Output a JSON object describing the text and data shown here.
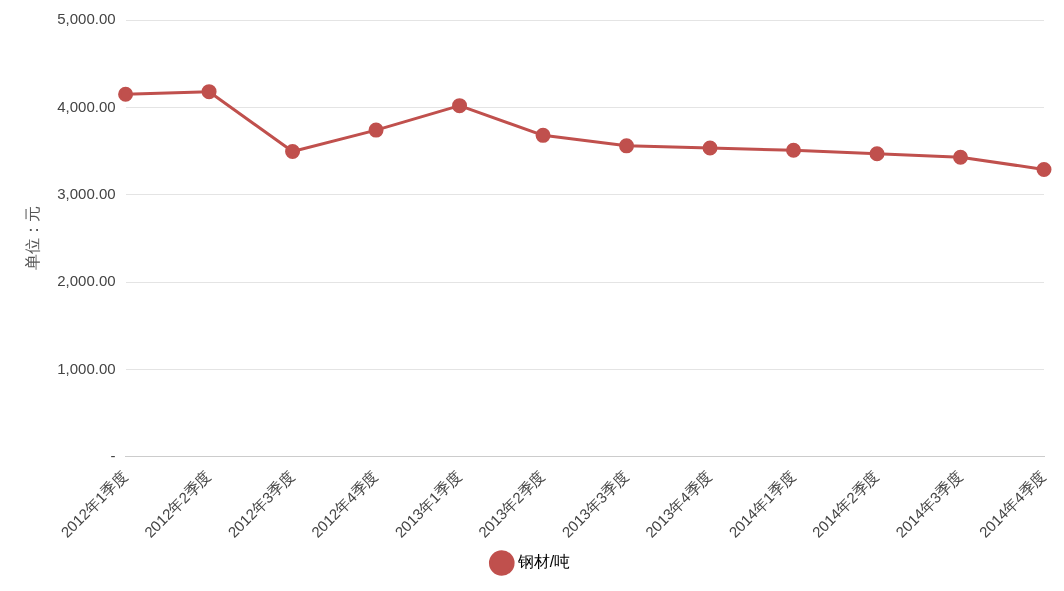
{
  "chart_data": {
    "type": "line",
    "ylabel": "单位：元",
    "categories": [
      "2012年1季度",
      "2012年2季度",
      "2012年3季度",
      "2012年4季度",
      "2013年1季度",
      "2013年2季度",
      "2013年3季度",
      "2013年4季度",
      "2014年1季度",
      "2014年2季度",
      "2014年3季度",
      "2014年4季度"
    ],
    "series": [
      {
        "name": "钢材/吨",
        "color": "#c0504d",
        "values": [
          4150,
          4180,
          3495,
          3740,
          4020,
          3680,
          3560,
          3535,
          3510,
          3470,
          3430,
          3290
        ]
      }
    ],
    "ylim": [
      0,
      5000
    ],
    "yticks": [
      {
        "value": 0,
        "label": "-"
      },
      {
        "value": 1000,
        "label": "1,000.00"
      },
      {
        "value": 2000,
        "label": "2,000.00"
      },
      {
        "value": 3000,
        "label": "3,000.00"
      },
      {
        "value": 4000,
        "label": "4,000.00"
      },
      {
        "value": 5000,
        "label": "5,000.00"
      }
    ],
    "grid": "y",
    "legend": "bottom",
    "marker": "circle",
    "line_style": "solid"
  }
}
